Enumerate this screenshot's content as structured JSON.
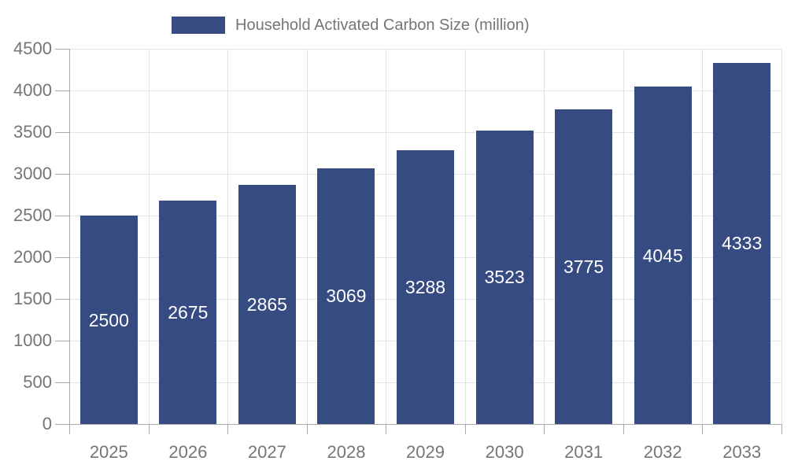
{
  "legend": {
    "label": "Household Activated Carbon Size (million)"
  },
  "chart_data": {
    "type": "bar",
    "title": "Household Activated Carbon Size (million)",
    "categories": [
      "2025",
      "2026",
      "2027",
      "2028",
      "2029",
      "2030",
      "2031",
      "2032",
      "2033"
    ],
    "values": [
      2500,
      2675,
      2865,
      3069,
      3288,
      3523,
      3775,
      4045,
      4333
    ],
    "value_labels": [
      "2500",
      "2675",
      "2865",
      "3069",
      "3288",
      "3523",
      "3775",
      "4045",
      "4333"
    ],
    "xlabel": "",
    "ylabel": "",
    "ylim": [
      0,
      4500
    ],
    "yticks": [
      0,
      500,
      1000,
      1500,
      2000,
      2500,
      3000,
      3500,
      4000,
      4500
    ],
    "grid": true,
    "legend_position": "top",
    "colors": {
      "bar": "#374B83",
      "value_label": "#ffffff",
      "axis_text": "#757575",
      "grid_line": "#e3e3e3",
      "axis_line": "#aaaaaa"
    }
  }
}
